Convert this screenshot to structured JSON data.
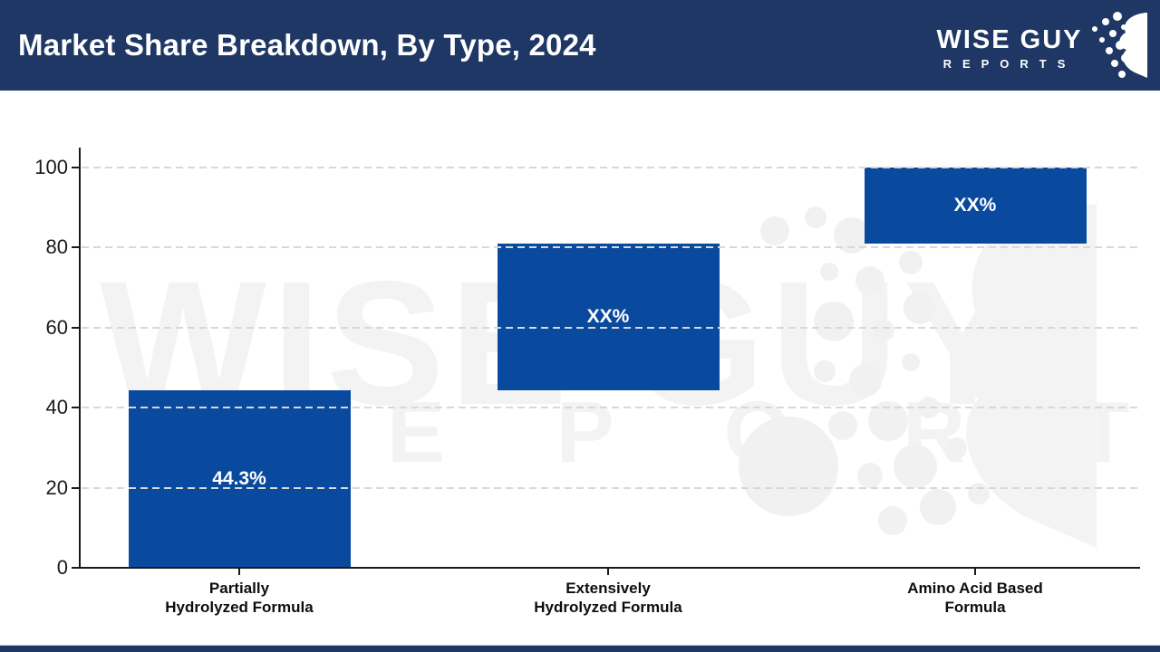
{
  "page": {
    "background": "#FFFFFF"
  },
  "header": {
    "title": "Market Share Breakdown, By Type, 2024",
    "bg_color": "#1F3765",
    "logo": {
      "line1": "WISE GUY",
      "line2": "REPORTS"
    }
  },
  "watermark": {
    "line1": "WISE GUY",
    "line2": "R E P O R T S"
  },
  "footer": {
    "bg_color": "#1F3765"
  },
  "chart_data": {
    "type": "bar",
    "variant": "stacked-waterfall",
    "title": "Market Share Breakdown, By Type, 2024",
    "categories": [
      {
        "line1": "Partially",
        "line2": "Hydrolyzed Formula"
      },
      {
        "line1": "Extensively",
        "line2": "Hydrolyzed Formula"
      },
      {
        "line1": "Amino Acid Based",
        "line2": "Formula"
      }
    ],
    "segments": [
      {
        "start": 0,
        "end": 44.3,
        "label": "44.3%"
      },
      {
        "start": 44.3,
        "end": 81,
        "label": "XX%"
      },
      {
        "start": 81,
        "end": 100,
        "label": "XX%"
      }
    ],
    "values": [
      44.3,
      36.7,
      19
    ],
    "ylim": [
      0,
      100
    ],
    "yticks": [
      0,
      20,
      40,
      60,
      80,
      100
    ],
    "grid": "horizontal-dashed",
    "legend": "none",
    "bar_color": "#0A4A9E",
    "bar_label_color": "#FFFFFF",
    "axis_color": "#1A1A1A",
    "gridline_color": "#D8D8D8"
  }
}
